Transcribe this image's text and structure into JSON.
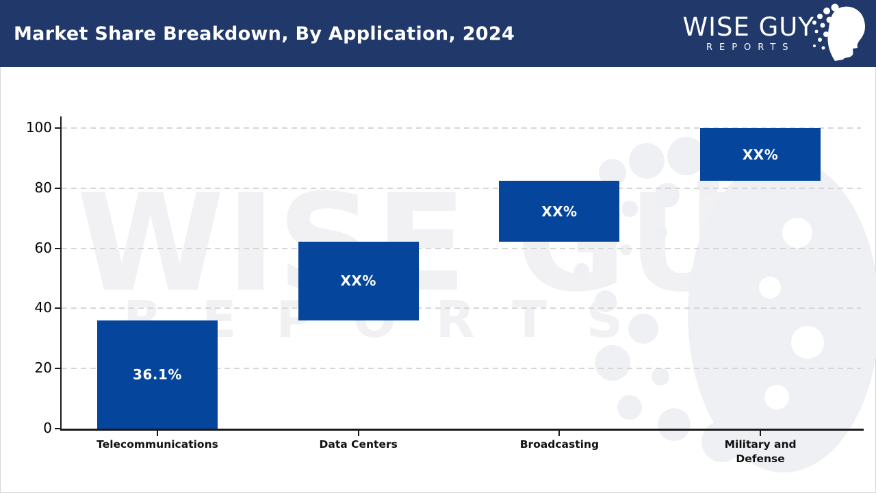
{
  "header": {
    "title": "Market Share Breakdown, By Application, 2024",
    "logo": {
      "line1": "WISE GUY",
      "line2": "REPORTS"
    }
  },
  "watermark": {
    "big": "WISE GUY",
    "sub": "REPORTS"
  },
  "chart_data": {
    "type": "bar",
    "subtype": "waterfall",
    "title": "Market Share Breakdown, By Application, 2024",
    "categories": [
      "Telecommunications",
      "Data Centers",
      "Broadcasting",
      "Military and\nDefense"
    ],
    "series": [
      {
        "name": "Market Share (%)",
        "segments": [
          {
            "category": "Telecommunications",
            "start": 0,
            "end": 36.1,
            "label": "36.1%"
          },
          {
            "category": "Data Centers",
            "start": 36.1,
            "end": 62.2,
            "label": "XX%"
          },
          {
            "category": "Broadcasting",
            "start": 62.2,
            "end": 82.4,
            "label": "XX%"
          },
          {
            "category": "Military and Defense",
            "start": 82.4,
            "end": 100,
            "label": "XX%"
          }
        ]
      }
    ],
    "xlabel": "",
    "ylabel": "",
    "ylim": [
      0,
      104
    ],
    "yticks": [
      0,
      20,
      40,
      60,
      80,
      100
    ],
    "grid": "horizontal-dashed",
    "legend": "none",
    "bar_color": "#05459b",
    "bar_label_color": "#ffffff",
    "header_color": "#21386b",
    "watermark_color": "#f1f1f4"
  }
}
